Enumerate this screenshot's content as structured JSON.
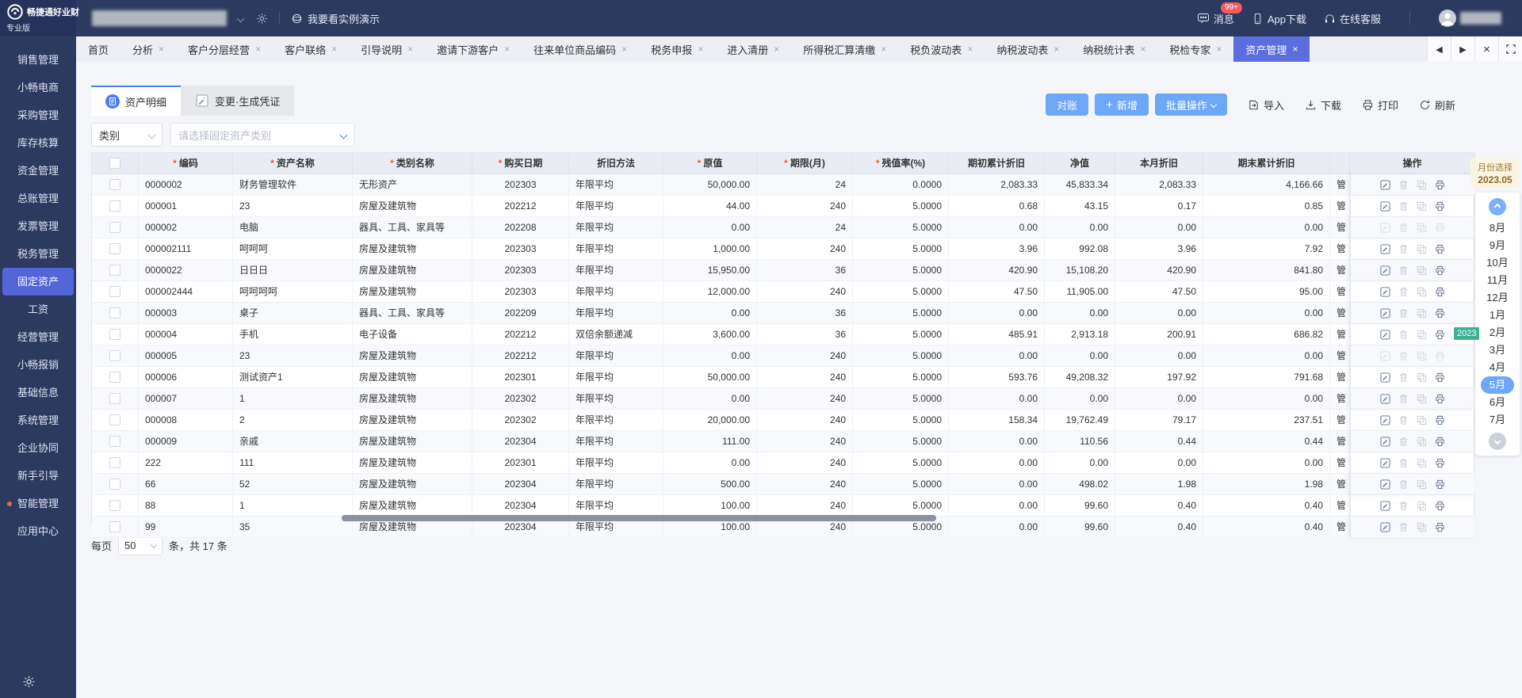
{
  "brand": {
    "name": "畅捷通好业财",
    "edition": "专业版"
  },
  "topbar": {
    "demo_link": "我要看实例演示",
    "messages_label": "消息",
    "messages_badge": "99+",
    "app_download_label": "App下载",
    "support_label": "在线客服"
  },
  "tabs": [
    {
      "label": "首页",
      "closable": false,
      "active": false
    },
    {
      "label": "分析",
      "closable": true,
      "active": false
    },
    {
      "label": "客户分层经营",
      "closable": true,
      "active": false
    },
    {
      "label": "客户联络",
      "closable": true,
      "active": false
    },
    {
      "label": "引导说明",
      "closable": true,
      "active": false
    },
    {
      "label": "邀请下游客户",
      "closable": true,
      "active": false
    },
    {
      "label": "往来单位商品编码",
      "closable": true,
      "active": false
    },
    {
      "label": "税务申报",
      "closable": true,
      "active": false
    },
    {
      "label": "进入清册",
      "closable": true,
      "active": false
    },
    {
      "label": "所得税汇算清缴",
      "closable": true,
      "active": false
    },
    {
      "label": "税负波动表",
      "closable": true,
      "active": false
    },
    {
      "label": "纳税波动表",
      "closable": true,
      "active": false
    },
    {
      "label": "纳税统计表",
      "closable": true,
      "active": false
    },
    {
      "label": "税检专家",
      "closable": true,
      "active": false
    },
    {
      "label": "资产管理",
      "closable": true,
      "active": true
    }
  ],
  "sidebar": {
    "items": [
      {
        "label": "销售管理"
      },
      {
        "label": "小畅电商"
      },
      {
        "label": "采购管理"
      },
      {
        "label": "库存核算"
      },
      {
        "label": "资金管理"
      },
      {
        "label": "总账管理"
      },
      {
        "label": "发票管理"
      },
      {
        "label": "税务管理"
      },
      {
        "label": "固定资产",
        "active": true
      },
      {
        "label": "工资"
      },
      {
        "label": "经营管理"
      },
      {
        "label": "小畅报销"
      },
      {
        "label": "基础信息"
      },
      {
        "label": "系统管理"
      },
      {
        "label": "企业协同"
      },
      {
        "label": "新手引导"
      },
      {
        "label": "智能管理",
        "dot": true
      },
      {
        "label": "应用中心"
      }
    ]
  },
  "module_tabs": [
    {
      "label": "资产明细",
      "active": true
    },
    {
      "label": "变更·生成凭证",
      "active": false
    }
  ],
  "filters": {
    "category_value": "类别",
    "asset_placeholder": "请选择固定资产类别"
  },
  "toolbar": {
    "reconcile": "对账",
    "add": "新增",
    "batch": "批量操作",
    "import": "导入",
    "download": "下载",
    "print": "打印",
    "refresh": "刷新"
  },
  "table": {
    "columns": [
      {
        "label": "编码",
        "required": true
      },
      {
        "label": "资产名称",
        "required": true
      },
      {
        "label": "类别名称",
        "required": true
      },
      {
        "label": "购买日期",
        "required": true
      },
      {
        "label": "折旧方法",
        "required": false
      },
      {
        "label": "原值",
        "required": true
      },
      {
        "label": "期限(月)",
        "required": true
      },
      {
        "label": "残值率(%)",
        "required": true
      },
      {
        "label": "期初累计折旧",
        "required": false
      },
      {
        "label": "净值",
        "required": false
      },
      {
        "label": "本月折旧",
        "required": false
      },
      {
        "label": "期末累计折旧",
        "required": false
      },
      {
        "label": "操作",
        "required": false
      }
    ],
    "truncated_column_text": "管",
    "rows": [
      [
        "0000002",
        "财务管理软件",
        "无形资产",
        "202303",
        "年限平均",
        "50,000.00",
        "24",
        "0.0000",
        "2,083.33",
        "45,833.34",
        "2,083.33",
        "4,166.66"
      ],
      [
        "000001",
        "23",
        "房屋及建筑物",
        "202212",
        "年限平均",
        "44.00",
        "240",
        "5.0000",
        "0.68",
        "43.15",
        "0.17",
        "0.85"
      ],
      [
        "000002",
        "电脑",
        "器具、工具、家具等",
        "202208",
        "年限平均",
        "0.00",
        "24",
        "5.0000",
        "0.00",
        "0.00",
        "0.00",
        "0.00"
      ],
      [
        "000002111",
        "呵呵呵",
        "房屋及建筑物",
        "202303",
        "年限平均",
        "1,000.00",
        "240",
        "5.0000",
        "3.96",
        "992.08",
        "3.96",
        "7.92"
      ],
      [
        "0000022",
        "日日日",
        "房屋及建筑物",
        "202303",
        "年限平均",
        "15,950.00",
        "36",
        "5.0000",
        "420.90",
        "15,108.20",
        "420.90",
        "841.80"
      ],
      [
        "000002444",
        "呵呵呵呵",
        "房屋及建筑物",
        "202303",
        "年限平均",
        "12,000.00",
        "240",
        "5.0000",
        "47.50",
        "11,905.00",
        "47.50",
        "95.00"
      ],
      [
        "000003",
        "桌子",
        "器具、工具、家具等",
        "202209",
        "年限平均",
        "0.00",
        "36",
        "5.0000",
        "0.00",
        "0.00",
        "0.00",
        "0.00"
      ],
      [
        "000004",
        "手机",
        "电子设备",
        "202212",
        "双倍余额递减",
        "3,600.00",
        "36",
        "5.0000",
        "485.91",
        "2,913.18",
        "200.91",
        "686.82"
      ],
      [
        "000005",
        "23",
        "房屋及建筑物",
        "202212",
        "年限平均",
        "0.00",
        "240",
        "5.0000",
        "0.00",
        "0.00",
        "0.00",
        "0.00"
      ],
      [
        "000006",
        "测试资产1",
        "房屋及建筑物",
        "202301",
        "年限平均",
        "50,000.00",
        "240",
        "5.0000",
        "593.76",
        "49,208.32",
        "197.92",
        "791.68"
      ],
      [
        "000007",
        "1",
        "房屋及建筑物",
        "202302",
        "年限平均",
        "0.00",
        "240",
        "5.0000",
        "0.00",
        "0.00",
        "0.00",
        "0.00"
      ],
      [
        "000008",
        "2",
        "房屋及建筑物",
        "202302",
        "年限平均",
        "20,000.00",
        "240",
        "5.0000",
        "158.34",
        "19,762.49",
        "79.17",
        "237.51"
      ],
      [
        "000009",
        "亲戚",
        "房屋及建筑物",
        "202304",
        "年限平均",
        "111.00",
        "240",
        "5.0000",
        "0.00",
        "110.56",
        "0.44",
        "0.44"
      ],
      [
        "222",
        "111",
        "房屋及建筑物",
        "202301",
        "年限平均",
        "0.00",
        "240",
        "5.0000",
        "0.00",
        "0.00",
        "0.00",
        "0.00"
      ],
      [
        "66",
        "52",
        "房屋及建筑物",
        "202304",
        "年限平均",
        "500.00",
        "240",
        "5.0000",
        "0.00",
        "498.02",
        "1.98",
        "1.98"
      ],
      [
        "88",
        "1",
        "房屋及建筑物",
        "202304",
        "年限平均",
        "100.00",
        "240",
        "5.0000",
        "0.00",
        "99.60",
        "0.40",
        "0.40"
      ],
      [
        "99",
        "35",
        "房屋及建筑物",
        "202304",
        "年限平均",
        "100.00",
        "240",
        "5.0000",
        "0.00",
        "99.60",
        "0.40",
        "0.40"
      ]
    ],
    "dimmed_action_rows": [
      2,
      8
    ]
  },
  "pagination": {
    "per_page_label": "每页",
    "per_page_value": "50",
    "total_text": "条，共 17 条"
  },
  "month_panel": {
    "title": "月份选择",
    "current": "2023.05",
    "year_badge": "2023",
    "months": [
      "8月",
      "9月",
      "10月",
      "11月",
      "12月",
      "1月",
      "2月",
      "3月",
      "4月",
      "5月",
      "6月",
      "7月"
    ],
    "active_month": "5月"
  },
  "colors": {
    "accent_blue": "#6da7f8",
    "tab_active": "#5a6edd",
    "sidebar_navy": "#2d3a60",
    "badge_red": "#f45b5b",
    "year_green": "#3eb195"
  }
}
